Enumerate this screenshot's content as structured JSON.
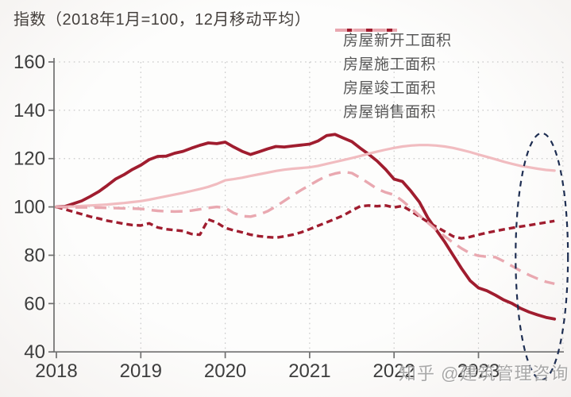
{
  "title": "指数（2018年1月=100，12月移动平均）",
  "watermark": "知乎 @建筑管理咨询",
  "colors": {
    "dark_red": "#a01d2f",
    "pink": "#f1bcc0",
    "pink_dark": "#e9a8b0",
    "navy": "#1e2e52",
    "grid": "#c9c9c9",
    "axis": "#6f6f6f",
    "tick_label": "#3d3d3d",
    "legend_text": "#585858",
    "title_text": "#45403d",
    "watermark_text": "#919191"
  },
  "legend": {
    "items": [
      {
        "label": "房屋新开工面积"
      },
      {
        "label": "房屋施工面积"
      },
      {
        "label": "房屋竣工面积"
      },
      {
        "label": "房屋销售面积"
      }
    ]
  },
  "chart_data": {
    "type": "line",
    "title": "指数（2018年1月=100，12月移动平均）",
    "x_start": 2018.0,
    "x_step": 0.1,
    "xlim": [
      2018,
      2024
    ],
    "ylim": [
      40,
      160
    ],
    "x_ticks": [
      2018,
      2019,
      2020,
      2021,
      2022,
      2023
    ],
    "x_tick_labels": [
      "2018",
      "2019",
      "2020",
      "2021",
      "2022",
      "2023"
    ],
    "x_grid_years": [
      2019,
      2020,
      2021,
      2022,
      2023,
      2024
    ],
    "y_ticks": [
      40,
      60,
      80,
      100,
      120,
      140,
      160
    ],
    "grid": "dotted",
    "legend_position": "top-right",
    "series": [
      {
        "name": "房屋新开工面积",
        "color": "dark_red",
        "style": "solid",
        "dash": null,
        "width": 3.8,
        "values": [
          100,
          100.2,
          101.3,
          102.5,
          104.3,
          106.3,
          108.8,
          111.5,
          113.3,
          115.5,
          117.3,
          119.6,
          120.9,
          121.0,
          122.2,
          123.0,
          124.3,
          125.5,
          126.5,
          126.2,
          126.8,
          124.8,
          123.0,
          121.7,
          122.8,
          124.0,
          125.0,
          124.8,
          125.2,
          125.6,
          126.0,
          127.3,
          129.5,
          130.0,
          128.5,
          127.0,
          124.3,
          121.8,
          119.0,
          115.5,
          111.5,
          110.5,
          106.5,
          102.0,
          95.5,
          90.5,
          85.5,
          80.0,
          74.5,
          69.5,
          66.5,
          65.3,
          63.5,
          61.5,
          60.0,
          58.0,
          56.5,
          55.3,
          54.3,
          53.6
        ]
      },
      {
        "name": "房屋施工面积",
        "color": "pink",
        "style": "solid",
        "dash": null,
        "width": 3.2,
        "values": [
          100,
          100.1,
          100.2,
          100.4,
          100.6,
          100.8,
          101.0,
          101.3,
          101.6,
          102.0,
          102.4,
          103.0,
          103.7,
          104.4,
          105.1,
          105.8,
          106.6,
          107.4,
          108.3,
          109.5,
          111.0,
          111.5,
          112.1,
          112.8,
          113.5,
          114.2,
          114.9,
          115.4,
          115.8,
          116.1,
          116.4,
          117.0,
          117.8,
          118.6,
          119.4,
          120.2,
          121.1,
          122.0,
          122.9,
          123.7,
          124.4,
          125.0,
          125.4,
          125.6,
          125.6,
          125.4,
          125.0,
          124.4,
          123.6,
          122.7,
          121.7,
          120.7,
          119.7,
          118.7,
          117.8,
          117.0,
          116.4,
          115.8,
          115.3,
          115.0
        ]
      },
      {
        "name": "房屋竣工面积",
        "color": "dark_red",
        "style": "dashed",
        "dash": "8 5",
        "width": 3.4,
        "values": [
          100,
          99.0,
          98.0,
          97.0,
          96.0,
          95.2,
          94.3,
          93.7,
          93.0,
          92.5,
          92.3,
          93.2,
          91.5,
          90.8,
          90.4,
          90.0,
          88.8,
          88.5,
          94.8,
          93.5,
          91.3,
          90.3,
          89.5,
          88.5,
          87.9,
          87.5,
          87.3,
          87.8,
          88.5,
          89.5,
          90.8,
          92.2,
          93.6,
          95.0,
          96.5,
          98.5,
          100.3,
          100.6,
          100.3,
          100.6,
          99.8,
          100.4,
          98.3,
          96.0,
          93.8,
          91.8,
          89.8,
          87.8,
          87.0,
          87.6,
          88.5,
          89.3,
          90.0,
          90.7,
          91.3,
          91.9,
          92.4,
          93.0,
          93.6,
          94.2
        ]
      },
      {
        "name": "房屋销售面积",
        "color": "pink_dark",
        "style": "dashed",
        "dash": "15 9",
        "width": 3.4,
        "values": [
          100,
          99.9,
          99.8,
          99.8,
          99.8,
          99.7,
          99.6,
          99.5,
          99.4,
          99.3,
          99.2,
          98.8,
          98.4,
          98.2,
          98.1,
          98.2,
          98.5,
          99.0,
          99.6,
          100.0,
          99.6,
          97.5,
          96.2,
          96.0,
          96.8,
          98.2,
          100.2,
          102.5,
          104.8,
          107.0,
          109.0,
          111.0,
          112.8,
          113.8,
          114.5,
          114.0,
          112.0,
          109.8,
          107.5,
          106.0,
          105.0,
          102.5,
          99.5,
          96.5,
          93.5,
          90.5,
          87.8,
          85.2,
          82.8,
          80.8,
          79.8,
          79.4,
          79.2,
          77.5,
          75.5,
          73.5,
          71.8,
          70.3,
          69.0,
          68.2
        ]
      }
    ],
    "annotation": {
      "shape": "dashed-ellipse",
      "x": 2023.75,
      "y": 79.5,
      "rx_years": 0.31,
      "ry_units": 51,
      "color": "navy"
    }
  }
}
